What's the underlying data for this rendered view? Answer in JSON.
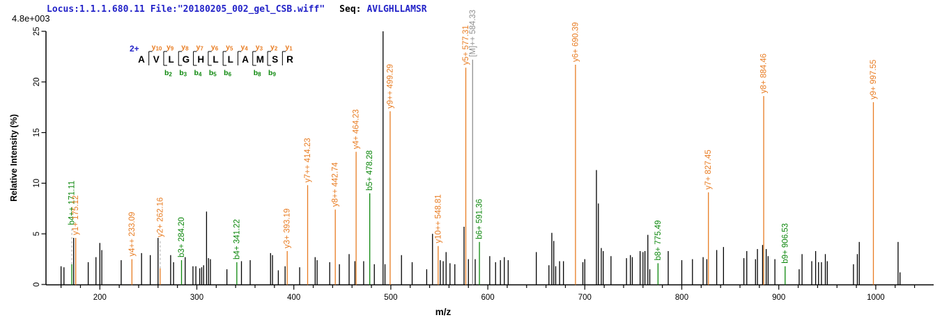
{
  "header": {
    "scale_note": "4.8e+003",
    "title": "Locus:1.1.1.680.11 File:\"20180205_002_gel_CSB.wiff\"",
    "seq_label": "Seq:",
    "sequence": "AVLGHLLAMSR"
  },
  "colors": {
    "title_blue": "#2323c8",
    "y_ion": "#e87c22",
    "b_ion": "#0c870c",
    "precursor": "#8f8f8f",
    "peak": "#000000",
    "leader": "#aaaaaa",
    "axis": "#000000"
  },
  "peptide_diagram": {
    "charge_label": "2+",
    "residues": [
      "A",
      "V",
      "L",
      "G",
      "H",
      "L",
      "L",
      "A",
      "M",
      "S",
      "R"
    ],
    "y_ions": [
      10,
      9,
      8,
      7,
      6,
      5,
      4,
      3,
      2,
      1
    ],
    "b_ions": [
      [
        1,
        2
      ],
      [
        2,
        3
      ],
      [
        3,
        4
      ],
      [
        4,
        5
      ],
      [
        5,
        6
      ],
      [
        7,
        8
      ],
      [
        8,
        9
      ]
    ]
  },
  "chart_data": {
    "type": "bar",
    "subtype": "ms2-fragment-mass-spectrum",
    "title": "Locus:1.1.1.680.11 File:\"20180205_002_gel_CSB.wiff\"  Seq: AVLGHLLAMSR",
    "xlabel": "m/z",
    "ylabel": "Relative  Intensity (%)",
    "intensity_scale_note": "4.8e+003",
    "xlim": [
      150,
      1060
    ],
    "ylim": [
      0,
      25
    ],
    "x_ticks_major": [
      200,
      300,
      400,
      500,
      600,
      700,
      800,
      900,
      1000
    ],
    "x_minor_tick_step": 20,
    "y_ticks": [
      0,
      5,
      10,
      15,
      20,
      25
    ],
    "grid": false,
    "legend": "none",
    "annotated_peaks": [
      {
        "label": "b4++ 171.11",
        "mz": 171.11,
        "intensity": 2.0,
        "ion": "b",
        "dashed_leader": true,
        "label_base": 5.6
      },
      {
        "label": "y1+ 175.12",
        "mz": 175.12,
        "intensity": 4.6,
        "ion": "y"
      },
      {
        "label": "y4++ 233.09",
        "mz": 233.09,
        "intensity": 2.5,
        "ion": "y"
      },
      {
        "label": "y2+ 262.16",
        "mz": 262.16,
        "intensity": 1.6,
        "ion": "y",
        "dashed_leader": true,
        "label_base": 4.4
      },
      {
        "label": "b3+ 284.20",
        "mz": 284.2,
        "intensity": 2.4,
        "ion": "b"
      },
      {
        "label": "b4+ 341.22",
        "mz": 341.22,
        "intensity": 2.2,
        "ion": "b"
      },
      {
        "label": "y3+ 393.19",
        "mz": 393.19,
        "intensity": 3.3,
        "ion": "y"
      },
      {
        "label": "y7++ 414.23",
        "mz": 414.23,
        "intensity": 9.8,
        "ion": "y"
      },
      {
        "label": "y8++ 442.74",
        "mz": 442.74,
        "intensity": 7.4,
        "ion": "y"
      },
      {
        "label": "y4+ 464.23",
        "mz": 464.23,
        "intensity": 13.1,
        "ion": "y"
      },
      {
        "label": "b5+ 478.28",
        "mz": 478.28,
        "intensity": 9.0,
        "ion": "b"
      },
      {
        "label": "y9++ 499.29",
        "mz": 499.29,
        "intensity": 17.1,
        "ion": "y"
      },
      {
        "label": "y10++ 548.81",
        "mz": 548.81,
        "intensity": 3.8,
        "ion": "y"
      },
      {
        "label": "y5+ 577.31",
        "mz": 577.31,
        "intensity": 21.4,
        "ion": "y"
      },
      {
        "label": "[M]++ 584.33",
        "mz": 584.33,
        "intensity": 22.2,
        "ion": "precursor"
      },
      {
        "label": "b6+ 591.36",
        "mz": 591.36,
        "intensity": 4.2,
        "ion": "b"
      },
      {
        "label": "y6+ 690.39",
        "mz": 690.39,
        "intensity": 21.7,
        "ion": "y"
      },
      {
        "label": "b8+ 775.49",
        "mz": 775.49,
        "intensity": 2.1,
        "ion": "b"
      },
      {
        "label": "y7+ 827.45",
        "mz": 827.45,
        "intensity": 9.1,
        "ion": "y"
      },
      {
        "label": "y8+ 884.46",
        "mz": 884.46,
        "intensity": 18.6,
        "ion": "y"
      },
      {
        "label": "b9+ 906.53",
        "mz": 906.53,
        "intensity": 1.8,
        "ion": "b"
      },
      {
        "label": "y9+ 997.55",
        "mz": 997.55,
        "intensity": 18.0,
        "ion": "y"
      }
    ],
    "unannotated_peaks": [
      [
        160,
        1.8
      ],
      [
        163,
        1.7
      ],
      [
        173,
        4.6
      ],
      [
        188,
        2.2
      ],
      [
        196,
        2.7
      ],
      [
        200,
        4.1
      ],
      [
        202,
        3.4
      ],
      [
        222,
        2.4
      ],
      [
        243,
        3.1
      ],
      [
        252,
        2.9
      ],
      [
        260,
        4.6
      ],
      [
        273,
        2.9
      ],
      [
        276,
        2.2
      ],
      [
        288,
        2.7
      ],
      [
        296,
        1.8
      ],
      [
        299,
        1.8
      ],
      [
        303,
        1.6
      ],
      [
        305,
        1.7
      ],
      [
        307,
        1.9
      ],
      [
        310,
        7.2
      ],
      [
        312,
        2.6
      ],
      [
        314,
        2.5
      ],
      [
        331,
        1.5
      ],
      [
        346,
        2.3
      ],
      [
        355,
        2.4
      ],
      [
        376,
        3.1
      ],
      [
        378,
        2.9
      ],
      [
        384,
        1.4
      ],
      [
        391,
        1.8
      ],
      [
        406,
        1.7
      ],
      [
        422,
        2.7
      ],
      [
        424,
        2.4
      ],
      [
        437,
        2.2
      ],
      [
        447,
        2.0
      ],
      [
        457,
        3.0
      ],
      [
        463,
        2.3
      ],
      [
        472,
        2.3
      ],
      [
        483,
        2.0
      ],
      [
        492,
        25.0
      ],
      [
        494,
        2.0
      ],
      [
        511,
        2.9
      ],
      [
        522,
        2.2
      ],
      [
        537,
        1.5
      ],
      [
        543,
        5.0
      ],
      [
        551,
        2.4
      ],
      [
        554,
        2.3
      ],
      [
        557,
        3.2
      ],
      [
        561,
        2.1
      ],
      [
        566,
        2.0
      ],
      [
        575.5,
        5.7
      ],
      [
        580,
        2.5
      ],
      [
        587,
        2.5
      ],
      [
        602,
        2.8
      ],
      [
        608,
        2.2
      ],
      [
        613,
        2.4
      ],
      [
        617,
        2.7
      ],
      [
        621,
        2.4
      ],
      [
        650,
        3.2
      ],
      [
        663,
        1.9
      ],
      [
        666,
        5.1
      ],
      [
        668,
        4.3
      ],
      [
        670,
        1.8
      ],
      [
        674,
        2.3
      ],
      [
        678,
        2.3
      ],
      [
        698,
        2.2
      ],
      [
        700,
        2.5
      ],
      [
        712,
        11.3
      ],
      [
        714,
        8.0
      ],
      [
        717,
        3.6
      ],
      [
        719,
        3.3
      ],
      [
        727,
        2.8
      ],
      [
        743,
        2.6
      ],
      [
        747,
        2.9
      ],
      [
        749,
        2.7
      ],
      [
        757,
        3.3
      ],
      [
        760,
        3.2
      ],
      [
        762,
        3.3
      ],
      [
        765,
        4.9
      ],
      [
        767,
        1.5
      ],
      [
        786,
        3.3
      ],
      [
        800,
        2.4
      ],
      [
        811,
        2.5
      ],
      [
        822,
        2.7
      ],
      [
        825.8,
        2.5
      ],
      [
        836,
        3.4
      ],
      [
        843,
        3.7
      ],
      [
        864,
        2.6
      ],
      [
        867,
        3.3
      ],
      [
        876,
        2.5
      ],
      [
        878,
        3.5
      ],
      [
        883.3,
        3.9
      ],
      [
        887,
        3.5
      ],
      [
        889,
        2.8
      ],
      [
        896,
        2.5
      ],
      [
        921,
        1.5
      ],
      [
        924,
        3.0
      ],
      [
        934,
        2.3
      ],
      [
        938,
        3.3
      ],
      [
        941,
        2.2
      ],
      [
        944,
        2.2
      ],
      [
        948,
        3.0
      ],
      [
        950,
        2.3
      ],
      [
        977,
        2.0
      ],
      [
        981,
        3.0
      ],
      [
        983,
        4.2
      ],
      [
        1023,
        4.2
      ],
      [
        1025,
        1.2
      ]
    ]
  }
}
